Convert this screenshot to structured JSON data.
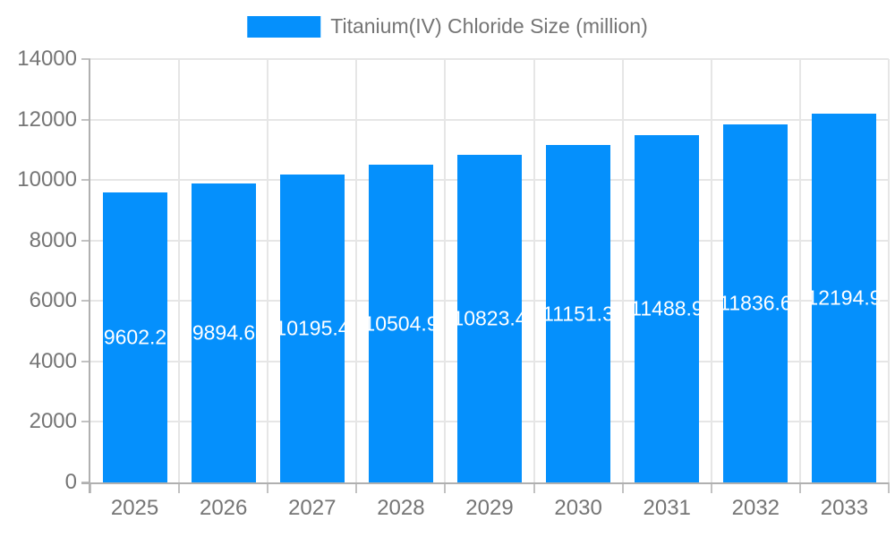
{
  "chart_data": {
    "type": "bar",
    "title": "",
    "categories": [
      "2025",
      "2026",
      "2027",
      "2028",
      "2029",
      "2030",
      "2031",
      "2032",
      "2033"
    ],
    "series": [
      {
        "name": "Titanium(IV) Chloride Size (million)",
        "values": [
          9602.2,
          9894.6,
          10195.4,
          10504.9,
          10823.4,
          11151.3,
          11488.9,
          11836.6,
          12194.9
        ],
        "data_labels": [
          "9602.2",
          "9894.6",
          "10195.4",
          "10504.9",
          "10823.4",
          "11151.3",
          "11488.9",
          "11836.6",
          "12194.9"
        ],
        "color": "#0590fc"
      }
    ],
    "xlabel": "",
    "ylabel": "",
    "ylim": [
      0,
      14000
    ],
    "yticks": [
      0,
      2000,
      4000,
      6000,
      8000,
      10000,
      12000,
      14000
    ],
    "grid": true,
    "legend_position": "top",
    "colors": {
      "bar": "#0590fc",
      "bar_label_text": "#ffffff",
      "axis_text": "#757575",
      "grid_line": "#e6e6e6",
      "axis_line": "#b0b0b0",
      "tick_mark": "#c2c2c2"
    }
  }
}
